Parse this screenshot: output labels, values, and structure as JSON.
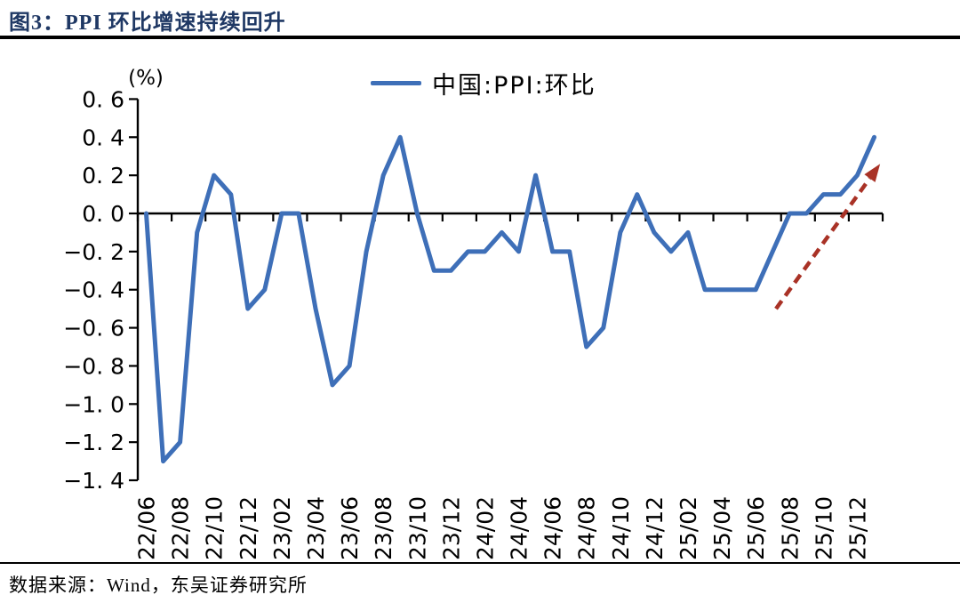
{
  "header": {
    "title": "图3：PPI 环比增速持续回升"
  },
  "footer": {
    "source": "数据来源：Wind，东吴证券研究所"
  },
  "colors": {
    "title_navy": "#1F3864",
    "series_blue": "#3E6FB8",
    "arrow_red": "#A93226",
    "axis_black": "#000000"
  },
  "chart_data": {
    "type": "line",
    "title": "图3：PPI 环比增速持续回升",
    "unit_label": "(%)",
    "legend": "中国:PPI:环比",
    "legend_position": "top-center",
    "grid": "off",
    "ylim": [
      -1.4,
      0.6
    ],
    "y_ticks": {
      "values": [
        0.6,
        0.4,
        0.2,
        0.0,
        -0.2,
        -0.4,
        -0.6,
        -0.8,
        -1.0,
        -1.2,
        -1.4
      ],
      "labels": [
        "0. 6",
        "0. 4",
        "0. 2",
        "0. 0",
        "−0. 2",
        "−0. 4",
        "−0. 6",
        "−0. 8",
        "−1. 0",
        "−1. 2",
        "−1. 4"
      ]
    },
    "x": [
      "22/06",
      "22/07",
      "22/08",
      "22/09",
      "22/10",
      "22/11",
      "22/12",
      "23/01",
      "23/02",
      "23/03",
      "23/04",
      "23/05",
      "23/06",
      "23/07",
      "23/08",
      "23/09",
      "23/10",
      "23/11",
      "23/12",
      "24/01",
      "24/02",
      "24/03",
      "24/04",
      "24/05",
      "24/06",
      "24/07",
      "24/08",
      "24/09",
      "24/10",
      "24/11",
      "24/12",
      "25/01",
      "25/02",
      "25/03",
      "25/04",
      "25/05",
      "25/06",
      "25/07",
      "25/08",
      "25/09",
      "25/10",
      "25/11",
      "25/12",
      "26/01"
    ],
    "x_tick_labels": [
      "22/06",
      "22/08",
      "22/10",
      "22/12",
      "23/02",
      "23/04",
      "23/06",
      "23/08",
      "23/10",
      "23/12",
      "24/02",
      "24/04",
      "24/06",
      "24/08",
      "24/10",
      "24/12",
      "25/02",
      "25/04",
      "25/06",
      "25/08",
      "25/10",
      "25/12"
    ],
    "series": [
      {
        "name": "中国:PPI:环比",
        "color": "#3E6FB8",
        "values": [
          0.0,
          -1.3,
          -1.2,
          -0.1,
          0.2,
          0.1,
          -0.5,
          -0.4,
          0.0,
          0.0,
          -0.5,
          -0.9,
          -0.8,
          -0.2,
          0.2,
          0.4,
          0.0,
          -0.3,
          -0.3,
          -0.2,
          -0.2,
          -0.1,
          -0.2,
          0.2,
          -0.2,
          -0.2,
          -0.7,
          -0.6,
          -0.1,
          0.1,
          -0.1,
          -0.2,
          -0.1,
          -0.4,
          -0.4,
          -0.4,
          -0.4,
          -0.2,
          0.0,
          0.0,
          0.1,
          0.1,
          0.2,
          0.4
        ]
      }
    ],
    "annotation": {
      "type": "trend-arrow",
      "style": "dashed",
      "color": "#A93226",
      "start": {
        "index": 37.2,
        "value": -0.5
      },
      "end": {
        "index": 43.35,
        "value": 0.26
      }
    }
  }
}
